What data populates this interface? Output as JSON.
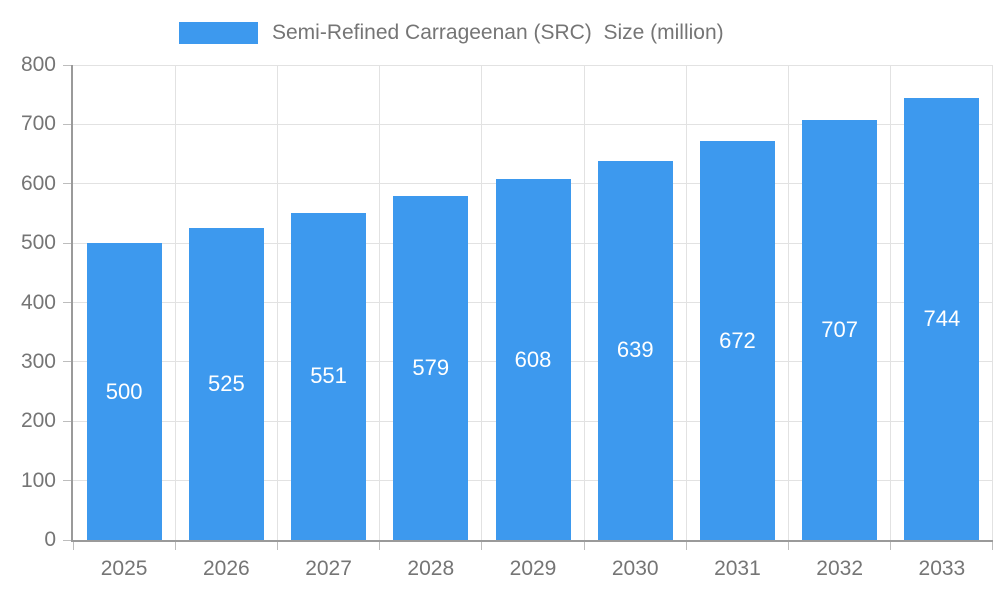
{
  "colors": {
    "bar": "#3D99EE",
    "axis_line": "#9A9A9A",
    "grid_line": "#E2E2E2",
    "tick": "#BDBDBD",
    "text_gray": "#757575",
    "bar_label": "#FFFFFF",
    "background": "#FFFFFF"
  },
  "legend": {
    "label": "Semi-Refined Carrageenan (SRC)  Size (million)"
  },
  "chart_data": {
    "type": "bar",
    "title": "Semi-Refined Carrageenan (SRC) Size (million)",
    "categories": [
      "2025",
      "2026",
      "2027",
      "2028",
      "2029",
      "2030",
      "2031",
      "2032",
      "2033"
    ],
    "series": [
      {
        "name": "Semi-Refined Carrageenan (SRC)  Size (million)",
        "values": [
          500,
          525,
          551,
          579,
          608,
          639,
          672,
          707,
          744
        ]
      }
    ],
    "xlabel": "",
    "ylabel": "",
    "ylim": [
      0,
      800
    ],
    "ytick_interval": 100,
    "grid": true,
    "legend_position": "top",
    "bar_labels_inside": true
  }
}
